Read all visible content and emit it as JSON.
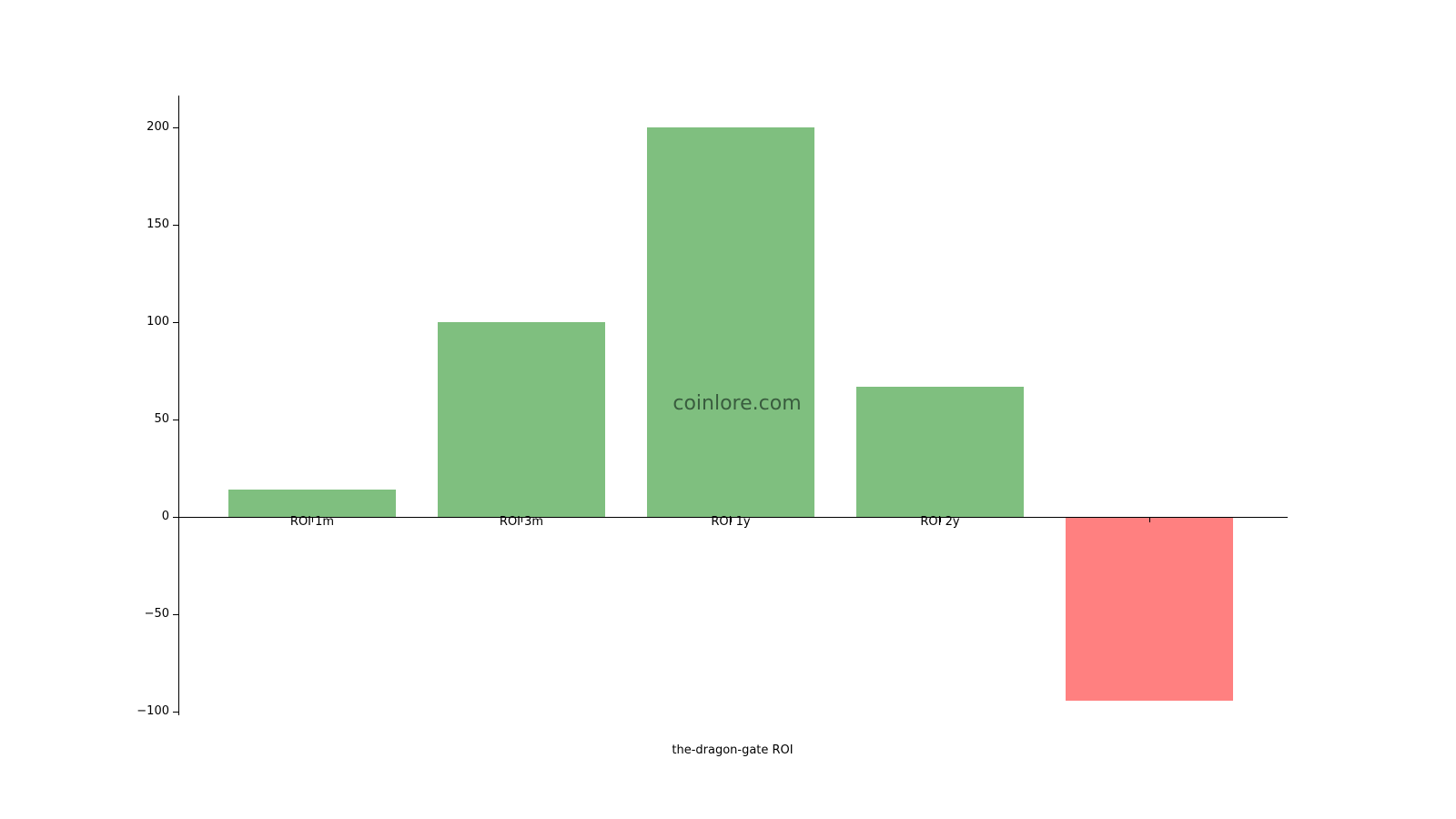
{
  "page": {
    "background_color": "#ffffff",
    "axis_color": "#000000"
  },
  "watermark": {
    "text": "coinlore.com"
  },
  "chart_data": {
    "type": "bar",
    "title": "the-dragon-gate ROI",
    "categories": [
      "ROI 1m",
      "ROI 3m",
      "ROI 1y",
      "ROI 2y",
      ""
    ],
    "values": [
      14,
      100,
      200,
      67,
      -94
    ],
    "series": [
      {
        "name": "ROI",
        "values": [
          14,
          100,
          200,
          67,
          -94
        ]
      }
    ],
    "positive_color": "#7fbf7f",
    "negative_color": "#ff8080",
    "xlabel": "",
    "ylabel": "",
    "yticks": [
      200,
      150,
      100,
      50,
      0,
      -50,
      -100
    ],
    "ylim": [
      -102,
      216
    ],
    "grid": false,
    "legend": null
  }
}
